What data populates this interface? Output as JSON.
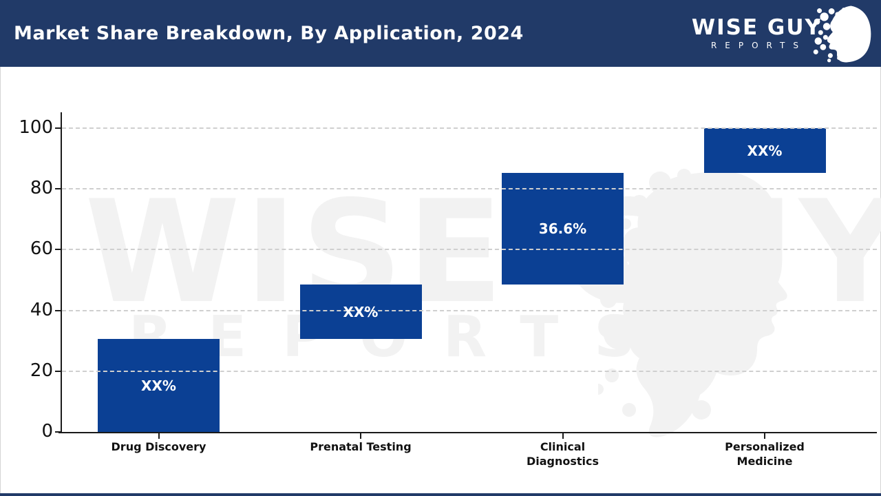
{
  "header": {
    "title": "Market Share Breakdown, By Application, 2024",
    "logo": {
      "title": "WISE GUY",
      "subtitle": "REPORTS"
    },
    "bg_color": "#213a68",
    "text_color": "#ffffff"
  },
  "watermark": {
    "title": "WISE GUY",
    "subtitle": "REPORTS"
  },
  "chart_data": {
    "type": "bar",
    "subtype": "waterfall",
    "title": "Market Share Breakdown, By Application, 2024",
    "xlabel": "",
    "ylabel": "",
    "categories": [
      "Drug Discovery",
      "Prenatal Testing",
      "Clinical\nDiagnostics",
      "Personalized\nMedicine"
    ],
    "segments": [
      {
        "category": "Drug Discovery",
        "start": 0,
        "end": 30.5,
        "label": "XX%"
      },
      {
        "category": "Prenatal Testing",
        "start": 30.5,
        "end": 48.6,
        "label": "XX%"
      },
      {
        "category": "Clinical Diagnostics",
        "start": 48.6,
        "end": 85.2,
        "label": "36.6%"
      },
      {
        "category": "Personalized Medicine",
        "start": 85.2,
        "end": 100,
        "label": "XX%"
      }
    ],
    "yticks": [
      0,
      20,
      40,
      60,
      80,
      100
    ],
    "ylim": [
      0,
      105
    ],
    "grid": "horizontal-dashed",
    "legend": "none",
    "bar_color": "#0b4094",
    "bar_label_color": "#ffffff",
    "grid_color": "#cfcfcf",
    "axis_color": "#1a1a1a"
  }
}
